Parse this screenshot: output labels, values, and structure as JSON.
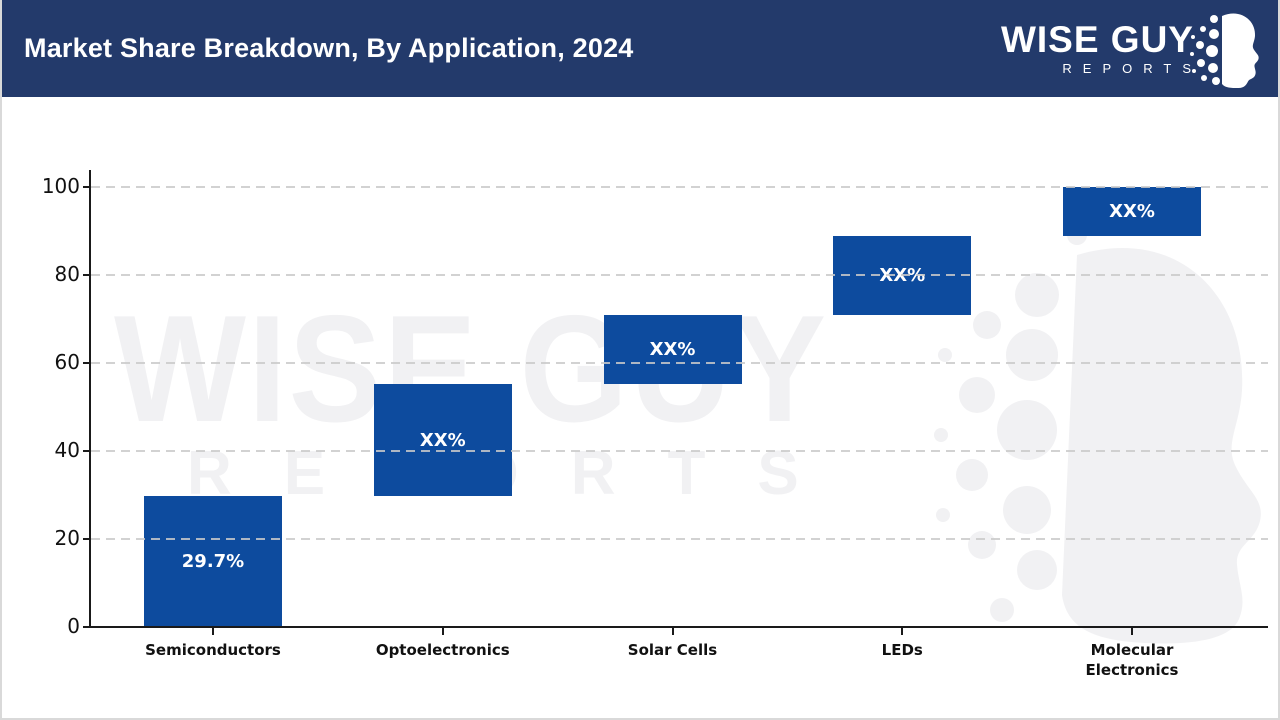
{
  "header": {
    "title": "Market Share Breakdown, By Application, 2024",
    "logo": {
      "line1": "WISE GUY",
      "line2": "REPORTS"
    }
  },
  "watermark": {
    "line1": "WISE GUY",
    "line2": "REPORTS"
  },
  "chart_data": {
    "type": "bar",
    "subtype": "floating-waterfall",
    "title": "Market Share Breakdown, By Application, 2024",
    "categories": [
      "Semiconductors",
      "Optoelectronics",
      "Solar Cells",
      "LEDs",
      "Molecular Electronics"
    ],
    "bars": [
      {
        "category": "Semiconductors",
        "start": 0,
        "end": 29.7,
        "label": "29.7%"
      },
      {
        "category": "Optoelectronics",
        "start": 29.7,
        "end": 55.2,
        "label": "XX%"
      },
      {
        "category": "Solar Cells",
        "start": 55.2,
        "end": 71.0,
        "label": "XX%"
      },
      {
        "category": "LEDs",
        "start": 71.0,
        "end": 88.8,
        "label": "XX%"
      },
      {
        "category": "Molecular Electronics",
        "start": 88.8,
        "end": 100.0,
        "label": "XX%"
      }
    ],
    "xlabel": "",
    "ylabel": "",
    "ylim": [
      0,
      100
    ],
    "yticks": [
      0,
      20,
      40,
      60,
      80,
      100
    ],
    "grid": "horizontal-dashed",
    "legend": "none"
  },
  "colors": {
    "header_bg": "#233a6b",
    "bar_fill": "#0d4b9e",
    "bar_label": "#ffffff",
    "axis": "#1a1a1a",
    "grid_line": "#cacaca",
    "watermark": "#f1f1f3"
  }
}
